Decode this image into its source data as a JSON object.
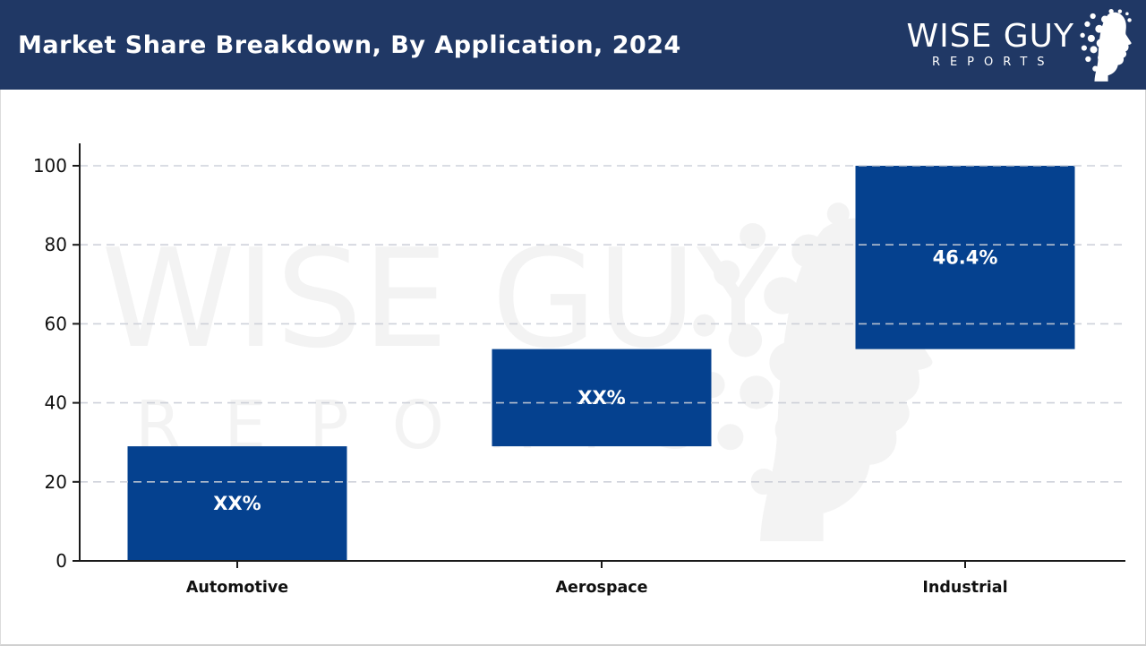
{
  "header": {
    "title": "Market Share Breakdown, By Application, 2024",
    "logo": {
      "name": "WISE GUY",
      "sub": "REPORTS"
    }
  },
  "watermark": {
    "name": "WISE GUY",
    "sub": "REPORTS"
  },
  "chart_data": {
    "type": "bar",
    "variant": "floating-segment-waterfall",
    "title": "Market Share Breakdown, By Application, 2024",
    "categories": [
      "Automotive",
      "Aerospace",
      "Industrial"
    ],
    "bars": [
      {
        "category": "Automotive",
        "start": 0,
        "end": 29,
        "label": "XX%"
      },
      {
        "category": "Aerospace",
        "start": 29,
        "end": 53.6,
        "label": "XX%"
      },
      {
        "category": "Industrial",
        "start": 53.6,
        "end": 100,
        "label": "46.4%"
      }
    ],
    "yticks": [
      0,
      20,
      40,
      60,
      80,
      100
    ],
    "ylim": [
      0,
      105.7
    ],
    "xlabel": "",
    "ylabel": "",
    "grid": true,
    "grid_style": "dashed",
    "legend": false,
    "bar_color": "#05418f",
    "label_color": "#ffffff",
    "grid_color": "#c9cdd6",
    "axis_color": "#1a1a1a",
    "tick_label_color": "#111111",
    "header_bg": "#203865"
  }
}
